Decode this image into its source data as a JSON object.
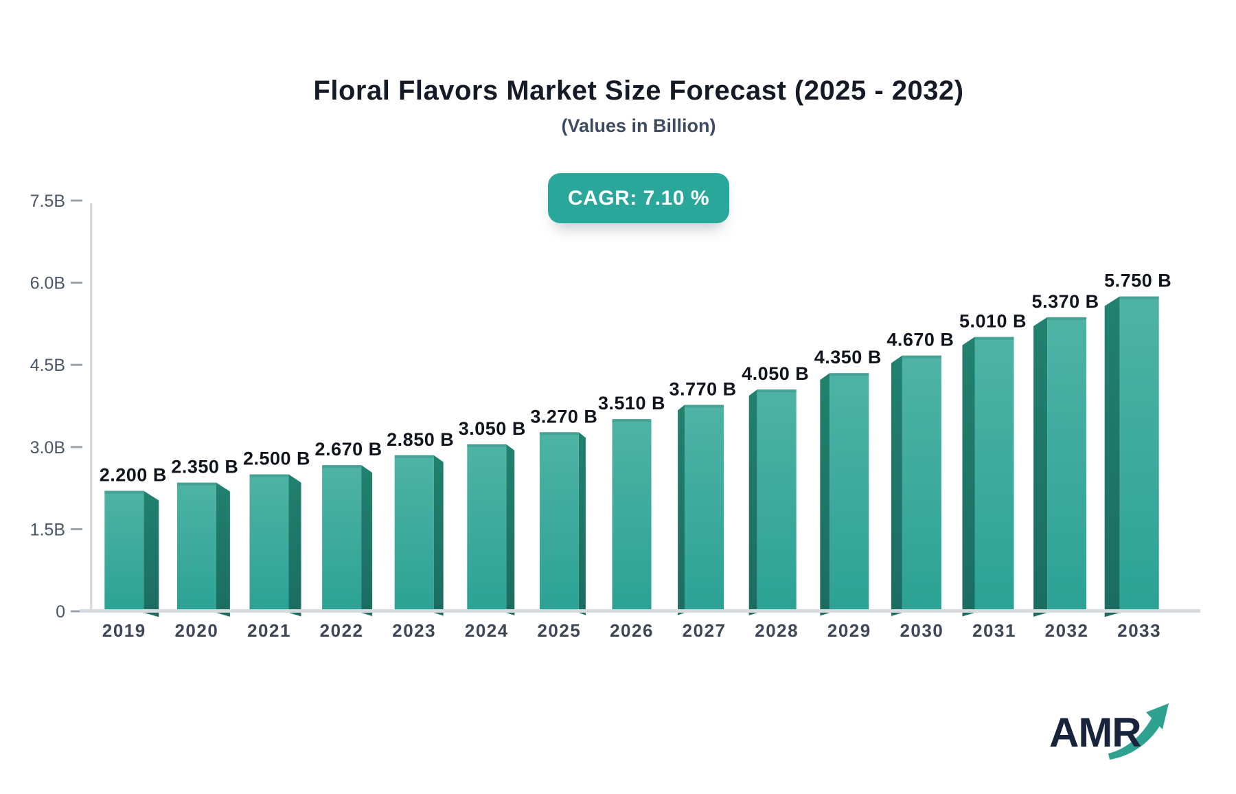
{
  "header": {
    "title": "Floral Flavors Market Size Forecast (2025 - 2032)",
    "subtitle": "(Values in Billion)",
    "cagr_badge": "CAGR: 7.10 %"
  },
  "logo": {
    "text": "AMR",
    "arrow_icon": "growth-arrow"
  },
  "colors": {
    "bar_top": "#4FB3A4",
    "bar_bottom": "#2BA294",
    "bar_cap": "rgba(10,80,70,0.16)",
    "bar_side_top": "#21816F",
    "bar_side_bottom": "#1B6C61",
    "badge_bg": "#2AA79B",
    "axis_line": "#D8DBDE",
    "tick_dash": "#9AA3AC",
    "ytick_text": "#4A5568",
    "xtick_text": "#3D4756",
    "value_text": "#10151D",
    "title_text": "#141B26",
    "subtitle_text": "#3E4C61",
    "logo_text": "#18243C",
    "logo_arrow": "#2FA191"
  },
  "chart_data": {
    "type": "bar",
    "style": "pseudo-3d-columns-center-vanishing-point",
    "title": "Floral Flavors Market Size Forecast (2025 - 2032)",
    "subtitle": "(Values in Billion)",
    "cagr_label": "CAGR: 7.10 %",
    "unit": "Billion",
    "categories": [
      "2019",
      "2020",
      "2021",
      "2022",
      "2023",
      "2024",
      "2025",
      "2026",
      "2027",
      "2028",
      "2029",
      "2030",
      "2031",
      "2032",
      "2033"
    ],
    "values": [
      2.2,
      2.35,
      2.5,
      2.67,
      2.85,
      3.05,
      3.27,
      3.51,
      3.77,
      4.05,
      4.35,
      4.67,
      5.01,
      5.37,
      5.75
    ],
    "value_labels": [
      "2.200 B",
      "2.350 B",
      "2.500 B",
      "2.670 B",
      "2.850 B",
      "3.050 B",
      "3.270 B",
      "3.510 B",
      "3.770 B",
      "4.050 B",
      "4.350 B",
      "4.670 B",
      "5.010 B",
      "5.370 B",
      "5.750 B"
    ],
    "xlabel": "",
    "ylabel": "",
    "ylim": [
      0,
      7.5
    ],
    "yticks": [
      0,
      1.5,
      3.0,
      4.5,
      6.0,
      7.5
    ],
    "ytick_labels": [
      "0",
      "1.5B",
      "3.0B",
      "4.5B",
      "6.0B",
      "7.5B"
    ],
    "grid": false,
    "legend": false
  }
}
